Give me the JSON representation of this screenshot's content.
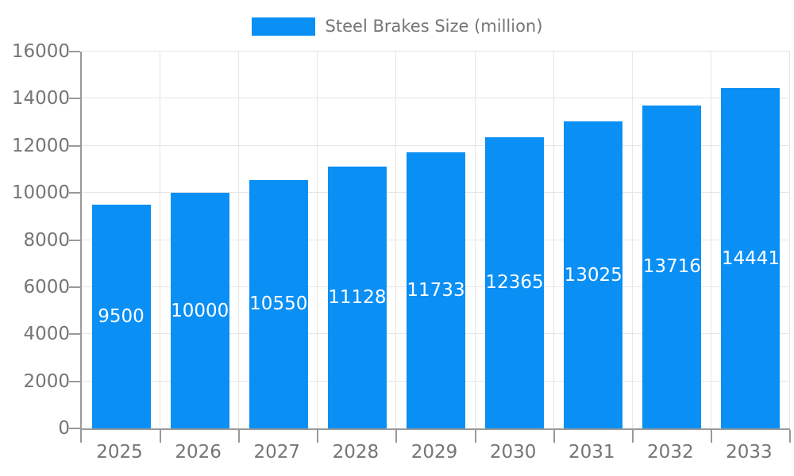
{
  "chart_data": {
    "type": "bar",
    "title": "",
    "legend_position": "top",
    "categories": [
      "2025",
      "2026",
      "2027",
      "2028",
      "2029",
      "2030",
      "2031",
      "2032",
      "2033"
    ],
    "series": [
      {
        "name": "Steel Brakes Size (million)",
        "values": [
          9500,
          10000,
          10550,
          11128,
          11733,
          12365,
          13025,
          13716,
          14441
        ],
        "color": "#0a8ff5"
      }
    ],
    "value_labels": [
      "9500",
      "10000",
      "10550",
      "11128",
      "11733",
      "12365",
      "13025",
      "13716",
      "14441"
    ],
    "value_label_color": "#ffffff",
    "xlabel": "",
    "ylabel": "",
    "ylim": [
      0,
      16000
    ],
    "yticks": [
      0,
      2000,
      4000,
      6000,
      8000,
      10000,
      12000,
      14000,
      16000
    ],
    "grid": {
      "horizontal": true,
      "vertical": true,
      "color": "#e6e6e6"
    },
    "axis_color": "#999999",
    "tick_label_color": "#757575"
  }
}
